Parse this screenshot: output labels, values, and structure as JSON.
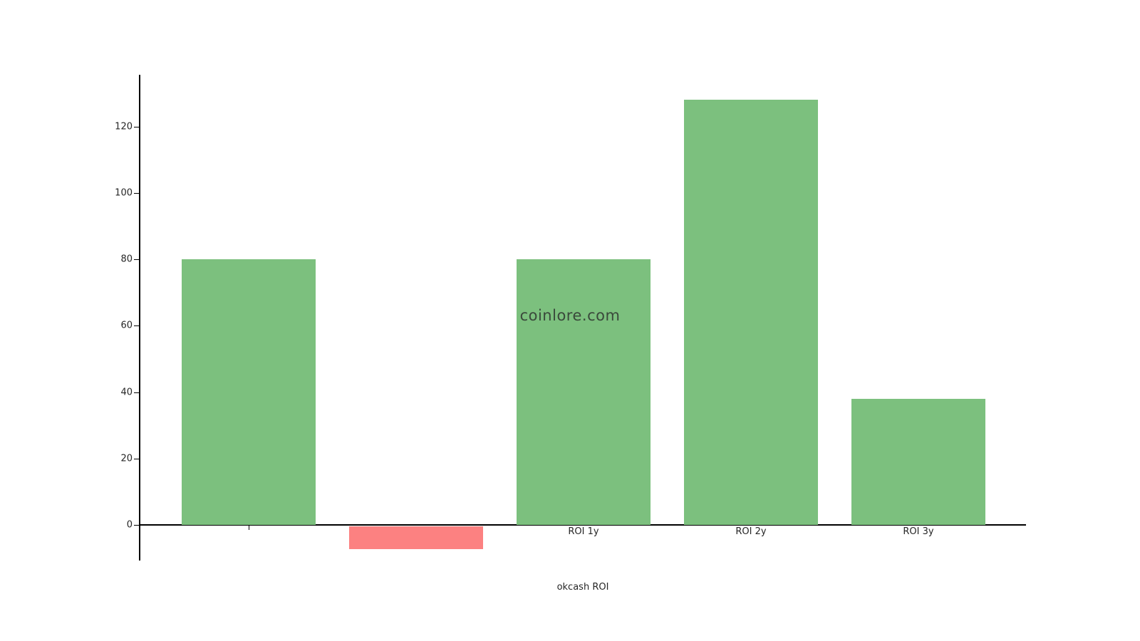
{
  "page": {
    "background_color": "#ffffff"
  },
  "watermark": {
    "text": "coinlore.com"
  },
  "chart_data": {
    "type": "bar",
    "title": "",
    "xlabel": "okcash ROI",
    "ylabel": "",
    "categories": [
      "",
      "",
      "ROI 1y",
      "ROI 2y",
      "ROI 3y"
    ],
    "values": [
      80,
      -7,
      80,
      128,
      38
    ],
    "bar_colors": [
      "#7cc07e",
      "#fc8181",
      "#7cc07e",
      "#7cc07e",
      "#7cc07e"
    ],
    "positive_color": "#7cc07e",
    "negative_color": "#fc8181",
    "yticks": [
      0,
      20,
      40,
      60,
      80,
      100,
      120
    ],
    "ylim": [
      -10.7,
      135.5
    ],
    "grid": false,
    "legend": null,
    "axis_color": "#000000",
    "tick_label_color": "#262626"
  }
}
